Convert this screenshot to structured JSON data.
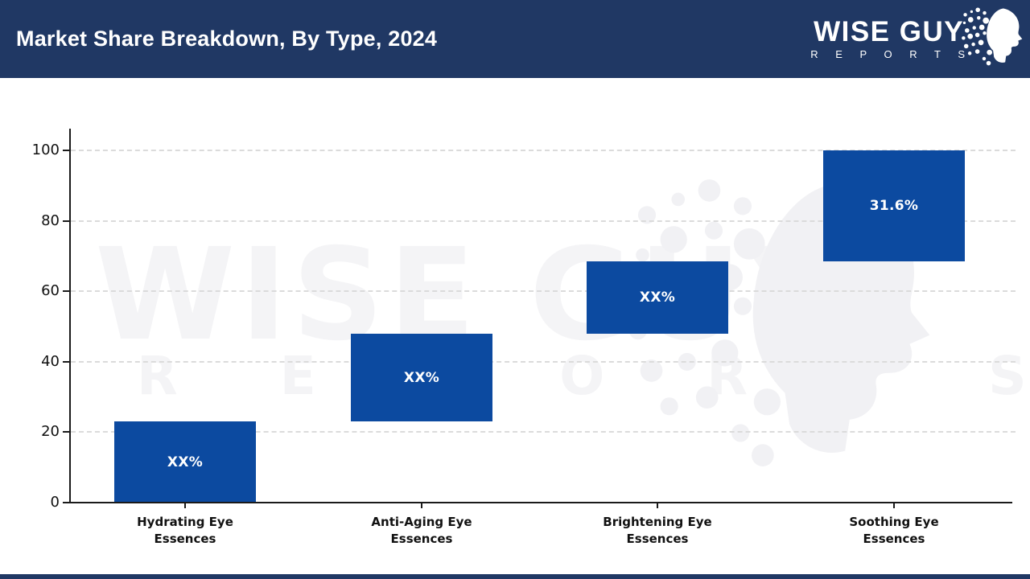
{
  "header": {
    "title": "Market Share Breakdown, By Type, 2024",
    "logo": {
      "line1": "WISE GUY",
      "line2": "R E P O R T S"
    }
  },
  "watermark": {
    "line1": "WISE GUY",
    "line2": "R E P O R T S"
  },
  "colors": {
    "header_navy": "#203864",
    "bar_blue": "#0c4aa0",
    "gridline": "#dbdbdb",
    "axis": "#1a1a1a",
    "bar_label_text": "#ffffff",
    "watermark_gray": "#f4f4f6"
  },
  "chart_data": {
    "type": "bar",
    "subtype": "waterfall",
    "title": "Market Share Breakdown, By Type, 2024",
    "xlabel": "",
    "ylabel": "",
    "categories": [
      "Hydrating Eye\nEssences",
      "Anti-Aging Eye\nEssences",
      "Brightening Eye\nEssences",
      "Soothing Eye\nEssences"
    ],
    "bars": [
      {
        "category": "Hydrating Eye Essences",
        "start": 0,
        "end": 23,
        "label": "XX%"
      },
      {
        "category": "Anti-Aging Eye Essences",
        "start": 23,
        "end": 48,
        "label": "XX%"
      },
      {
        "category": "Brightening Eye Essences",
        "start": 48,
        "end": 68.4,
        "label": "XX%"
      },
      {
        "category": "Soothing Eye Essences",
        "start": 68.4,
        "end": 100,
        "label": "31.6%"
      }
    ],
    "yticks": [
      0,
      20,
      40,
      60,
      80,
      100
    ],
    "ylim": [
      0,
      105
    ],
    "grid": "horizontal-dashed",
    "legend": "none"
  }
}
